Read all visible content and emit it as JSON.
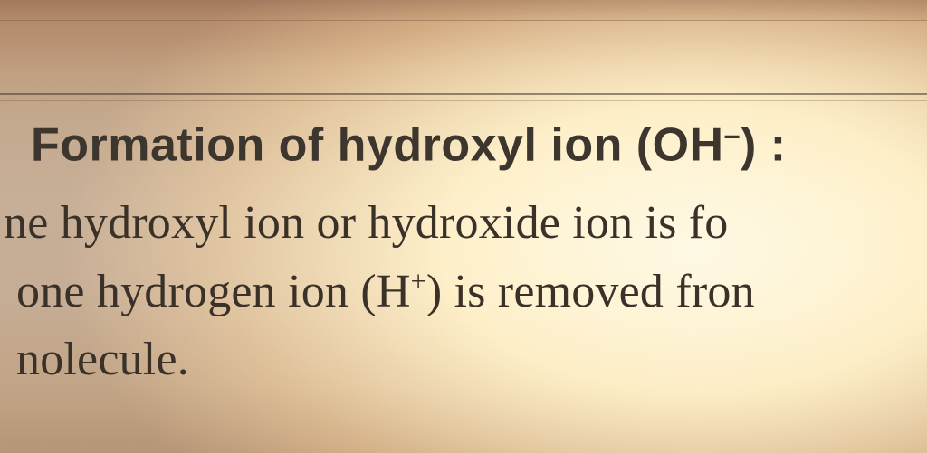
{
  "page": {
    "background_gradient": [
      "#c89b70",
      "#f8f0d5",
      "#d8bd95"
    ],
    "text_color": "#3a3128",
    "heading_color": "#3d362e",
    "rule_color": "rgba(70,55,45,0.55)"
  },
  "faint_previous_text": "",
  "heading": {
    "prefix": "Formation of hydroxyl ion (OH",
    "superscript": "–",
    "suffix": ") :",
    "font_family": "Century Gothic / sans-serif",
    "font_size_pt": 39,
    "font_weight": "bold"
  },
  "body": {
    "font_family": "Georgia / serif",
    "font_size_pt": 39,
    "line1": "ne hydroxyl ion or hydroxide ion is fo",
    "line2_prefix": "one hydrogen ion (H",
    "line2_superscript": "+",
    "line2_suffix": ") is removed fron",
    "line3": "nolecule."
  }
}
